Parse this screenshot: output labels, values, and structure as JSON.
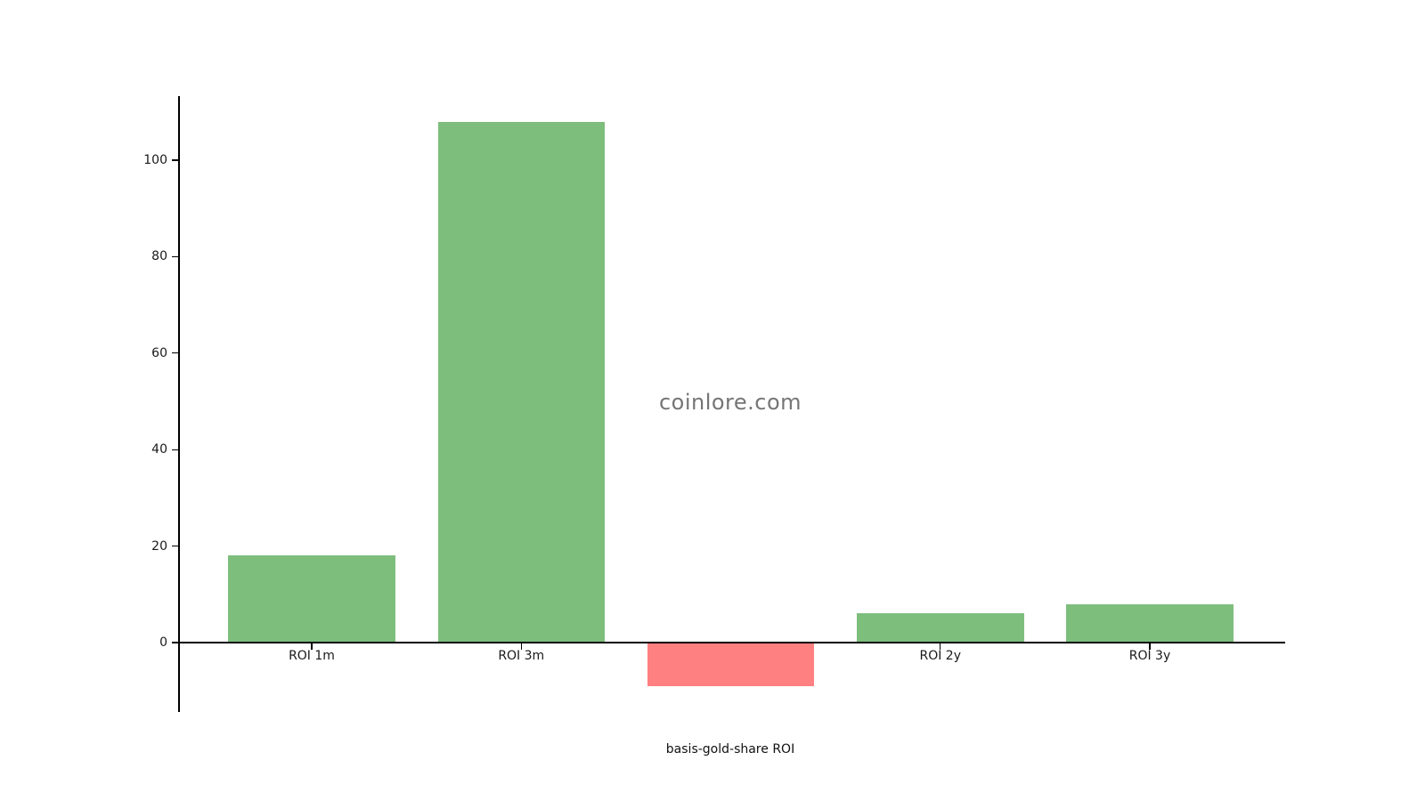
{
  "figure": {
    "watermark": "coinlore.com",
    "xlabel": "basis-gold-share ROI"
  },
  "chart_data": {
    "type": "bar",
    "title": "",
    "xlabel": "basis-gold-share ROI",
    "ylabel": "",
    "categories": [
      "ROI 1m",
      "ROI 3m",
      "",
      "ROI 2y",
      "ROI 3y"
    ],
    "values": [
      18,
      108,
      -9,
      6,
      8
    ],
    "yticks": [
      0,
      20,
      40,
      60,
      80,
      100
    ],
    "ylim": [
      -14.5,
      113.5
    ],
    "grid": false,
    "legend": false,
    "background": "#ffffff",
    "positive_bar_color": "#7dbe7d",
    "negative_bar_color": "#ff8080",
    "axis_color": "#000000",
    "watermark": "coinlore.com",
    "watermark_color": "#757575"
  }
}
